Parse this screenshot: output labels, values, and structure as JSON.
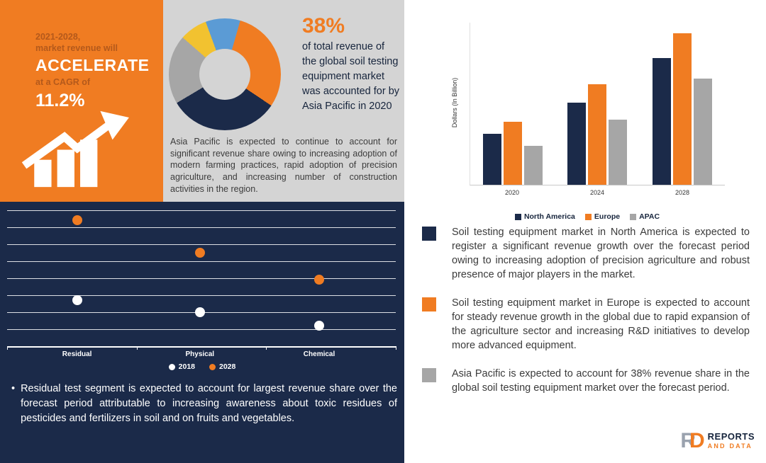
{
  "colors": {
    "orange": "#f07c22",
    "navy": "#1b2a49",
    "gray": "#a6a6a6",
    "panel_gray": "#d4d4d4",
    "yellow": "#f2c230",
    "blue": "#5b9bd5",
    "white": "#ffffff"
  },
  "promo": {
    "intro_line1": "2021-2028,",
    "intro_line2": "market revenue will",
    "accelerate": "ACCELERATE",
    "cagr_label": "at a CAGR of",
    "cagr_value": "11.2%"
  },
  "asia_pacific": {
    "stat": "38%",
    "stat_text": "of total revenue of the global soil testing equipment market was accounted for by Asia Pacific in 2020",
    "body": "Asia Pacific is expected to continue to account for significant revenue share owing to increasing adoption of modern farming practices, rapid adoption of precision agriculture, and increasing number of construction activities in the region."
  },
  "dot_section": {
    "bullet_glyph": "•",
    "bullet": "Residual test segment is expected to account for largest revenue share over the forecast period attributable to increasing awareness about toxic residues of pesticides and fertilizers in soil and on fruits and vegetables."
  },
  "insights": [
    {
      "color": "#1b2a49",
      "text": "Soil testing equipment market in North America is expected to register a significant revenue growth over the forecast period owing to increasing adoption of precision agriculture and robust presence of major players in the market."
    },
    {
      "color": "#f07c22",
      "text": "Soil testing equipment market in Europe is expected to account for steady revenue growth in the global due to rapid expansion of the agriculture sector and increasing R&D initiatives to develop more advanced equipment."
    },
    {
      "color": "#a6a6a6",
      "text": "Asia Pacific is expected to account for 38% revenue share in the global soil testing equipment market over the forecast period."
    }
  ],
  "logo": {
    "mark_r": "R",
    "mark_d": "D",
    "reports": "REPORTS",
    "and_data": "AND DATA"
  },
  "chart_data": [
    {
      "type": "pie",
      "title": "Asia Pacific 2020 revenue share donut",
      "values": [
        10,
        30,
        32,
        20,
        8
      ],
      "colors": [
        "#5b9bd5",
        "#f07c22",
        "#1b2a49",
        "#a6a6a6",
        "#f2c230"
      ],
      "start_angle_deg": -20,
      "donut_hole_ratio": 0.46
    },
    {
      "type": "bar",
      "categories": [
        "2020",
        "2024",
        "2028"
      ],
      "series": [
        {
          "name": "North America",
          "color": "#1b2a49",
          "values": [
            3.3,
            5.3,
            8.2
          ]
        },
        {
          "name": "Europe",
          "color": "#f07c22",
          "values": [
            4.1,
            6.5,
            9.8
          ]
        },
        {
          "name": "APAC",
          "color": "#a6a6a6",
          "values": [
            2.5,
            4.2,
            6.9
          ]
        }
      ],
      "ylabel": "Dollars (In Billion)",
      "ylim": [
        0,
        10.5
      ],
      "legend_position": "bottom",
      "grid": false
    },
    {
      "type": "scatter",
      "categories": [
        "Residual",
        "Physical",
        "Chemical"
      ],
      "series": [
        {
          "name": "2018",
          "color": "#ffffff",
          "values": [
            2.7,
            2.0,
            1.2
          ]
        },
        {
          "name": "2028",
          "color": "#f07c22",
          "values": [
            7.4,
            5.5,
            3.9
          ]
        }
      ],
      "ylim": [
        0,
        8
      ],
      "gridlines": 9,
      "legend_position": "bottom",
      "grid": true
    }
  ]
}
